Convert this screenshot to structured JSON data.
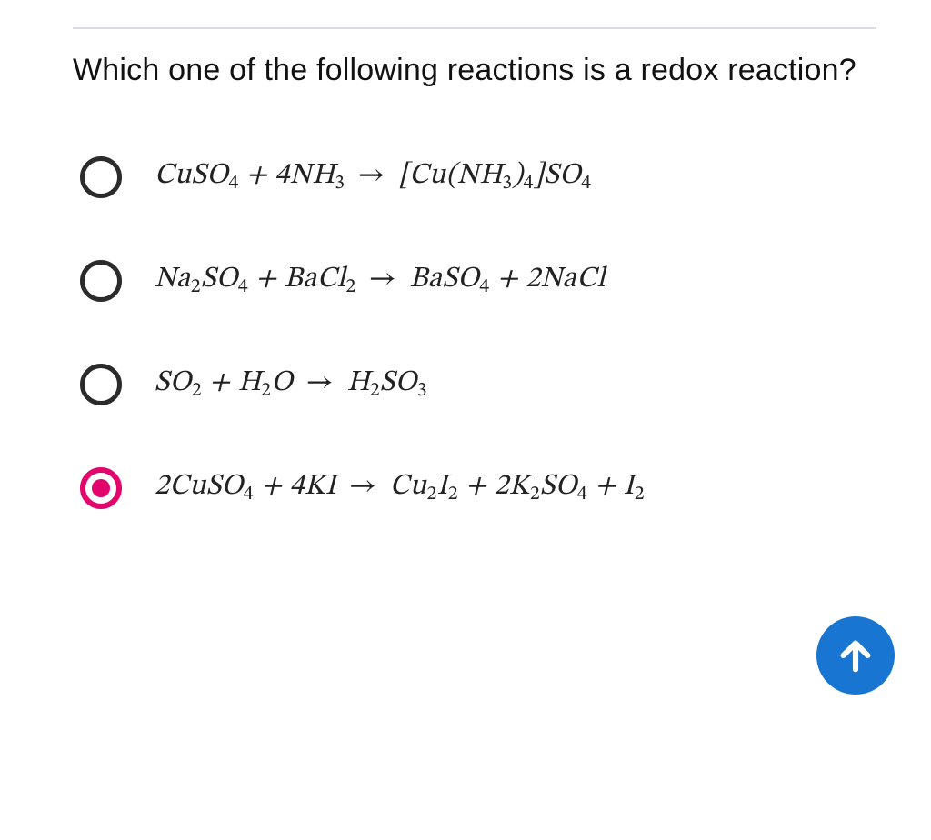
{
  "question": "Which one of the following reactions is a redox reaction?",
  "options": [
    {
      "formula_html": "<i>CuSO</i><sub>4</sub> + 4<i>NH</i><sub>3</sub> <span class='arrow'>→</span> [<i>Cu</i>(<i>NH</i><sub>3</sub>)<sub>4</sub>]<i>SO</i><sub>4</sub>",
      "selected": false
    },
    {
      "formula_html": "<i>Na</i><sub>2</sub><i>SO</i><sub>4</sub> + <i>BaCl</i><sub>2</sub> <span class='arrow'>→</span> <i>BaSO</i><sub>4</sub> + 2<i>NaCl</i>",
      "selected": false
    },
    {
      "formula_html": "<i>SO</i><sub>2</sub> + <i>H</i><sub>2</sub><i>O</i> <span class='arrow'>→</span> <i>H</i><sub>2</sub><i>SO</i><sub>3</sub>",
      "selected": false
    },
    {
      "formula_html": "2<i>CuSO</i><sub>4</sub> + 4<i>KI</i> <span class='arrow'>→</span> <i>Cu</i><sub>2</sub><i>I</i><sub>2</sub> + 2<i>K</i><sub>2</sub><i>SO</i><sub>4</sub> + <i>I</i><sub>2</sub>",
      "selected": true
    }
  ],
  "colors": {
    "accent": "#e2056c",
    "fab_bg": "#1876d2",
    "rule": "#d9dde2",
    "text": "#1a1a1a"
  },
  "fab_icon": "arrow-up"
}
